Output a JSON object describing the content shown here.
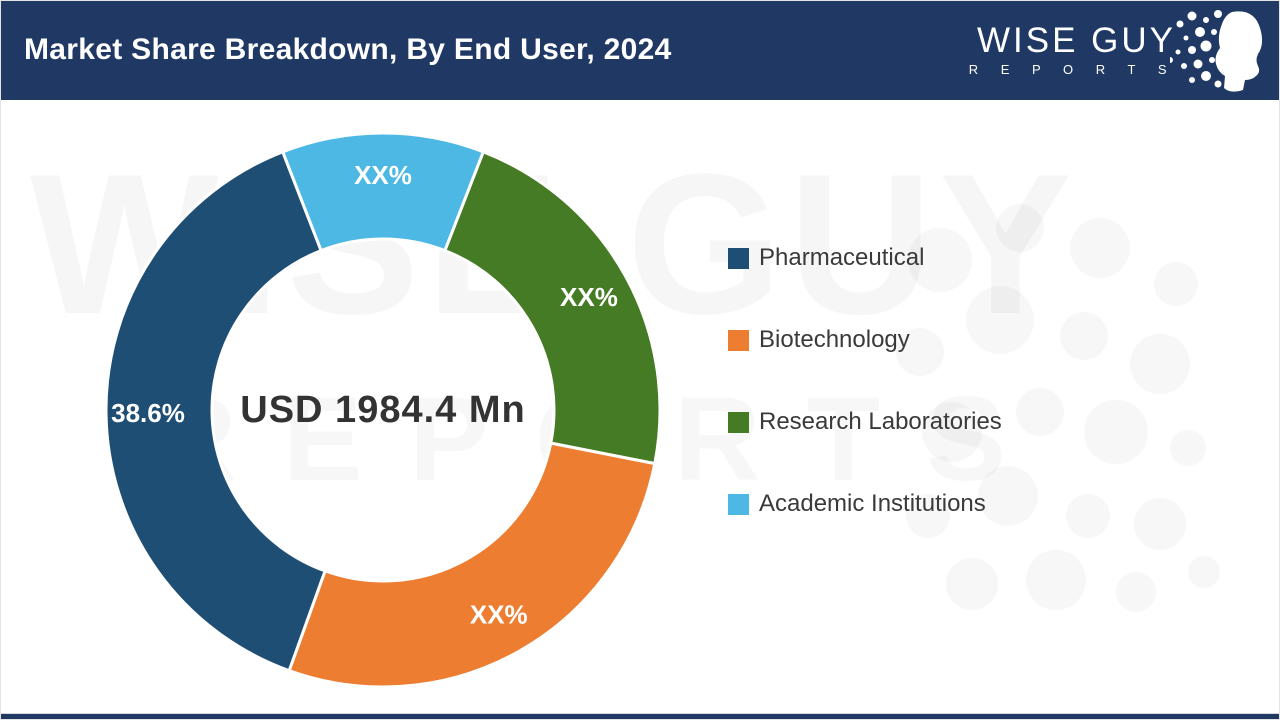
{
  "header": {
    "title": "Market Share Breakdown, By End User, 2024",
    "brand_line1": "WISE GUY",
    "brand_line2": "R E P O R T S"
  },
  "watermark": {
    "line1": "WISE GUY",
    "line2": "REPORTS"
  },
  "chart_data": {
    "type": "donut",
    "title": "Market Share Breakdown, By End User, 2024",
    "center_label": "USD 1984.4 Mn",
    "legend_position": "right",
    "series": [
      {
        "name": "Academic Institutions",
        "displayed_label": "XX%",
        "value": 11.8,
        "color": "#4DB8E3"
      },
      {
        "name": "Research Laboratories",
        "displayed_label": "XX%",
        "value": 22.2,
        "color": "#457B24"
      },
      {
        "name": "Biotechnology",
        "displayed_label": "XX%",
        "value": 27.4,
        "color": "#ED7D31"
      },
      {
        "name": "Pharmaceutical",
        "displayed_label": "38.6%",
        "value": 38.6,
        "color": "#1F4E74"
      }
    ]
  },
  "legend": {
    "items": [
      {
        "label": "Pharmaceutical",
        "color": "#1F4E74"
      },
      {
        "label": "Biotechnology",
        "color": "#ED7D31"
      },
      {
        "label": "Research Laboratories",
        "color": "#457B24"
      },
      {
        "label": "Academic Institutions",
        "color": "#4DB8E3"
      }
    ]
  }
}
